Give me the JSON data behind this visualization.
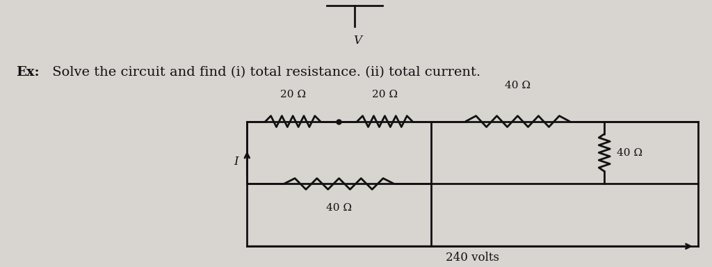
{
  "bg_color": "#d8d4d0",
  "line_color": "#111111",
  "title_bold": "Ex:",
  "title_rest": " Solve the circuit and find (i) total resistance. (ii) total current.",
  "voltage_label": "240 volts",
  "current_label": "I",
  "v_label": "V",
  "R1": "20 Ω",
  "R2": "20 Ω",
  "R3": "40 Ω",
  "R4": "40 Ω",
  "R5": "40 Ω",
  "figsize": [
    10.24,
    3.84
  ],
  "dpi": 100
}
